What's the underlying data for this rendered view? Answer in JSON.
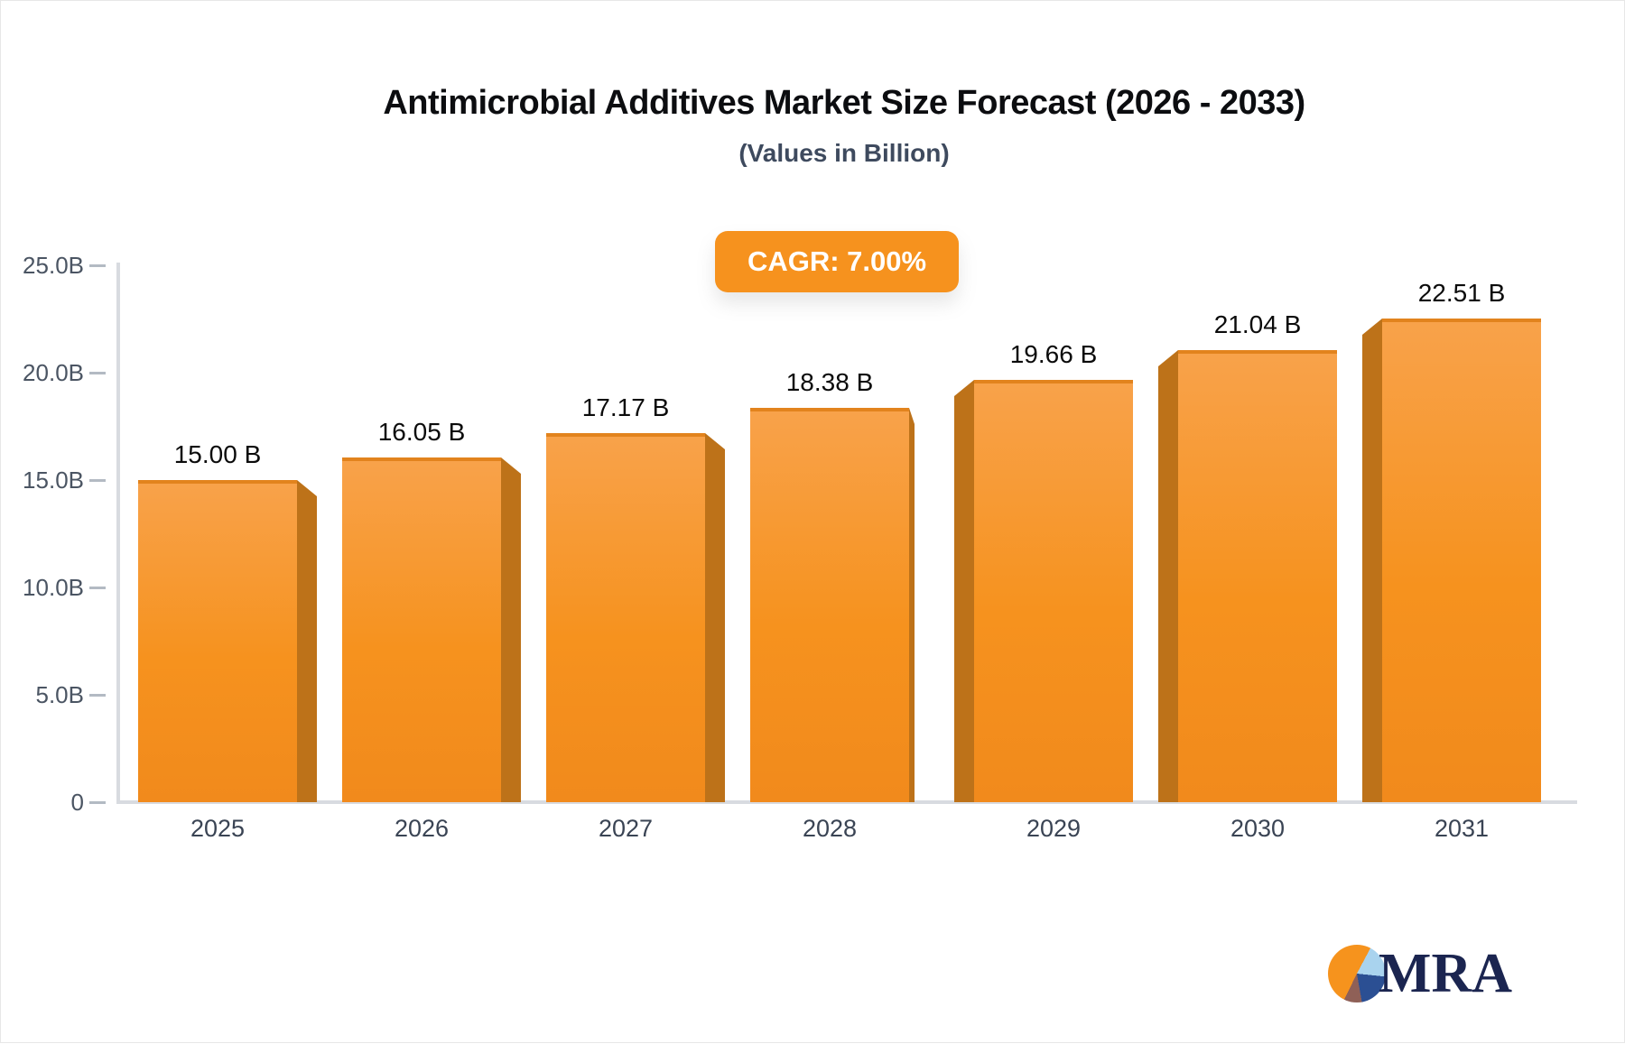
{
  "header": {
    "title": "Antimicrobial Additives Market Size Forecast (2026 - 2033)",
    "subtitle": "(Values in Billion)"
  },
  "cagr_badge": {
    "label": "CAGR: 7.00%",
    "background": "#f6921e",
    "text_color": "#ffffff"
  },
  "chart_data": {
    "type": "bar",
    "title": "Antimicrobial Additives Market Size Forecast (2026 - 2033)",
    "subtitle": "(Values in Billion)",
    "annotation": "CAGR: 7.00%",
    "unit": "Billion",
    "categories": [
      "2025",
      "2026",
      "2027",
      "2028",
      "2029",
      "2030",
      "2031"
    ],
    "values": [
      15.0,
      16.05,
      17.17,
      18.38,
      19.66,
      21.04,
      22.51
    ],
    "value_labels": [
      "15.00 B",
      "16.05 B",
      "17.17 B",
      "18.38 B",
      "19.66 B",
      "21.04 B",
      "22.51 B"
    ],
    "xlabel": "",
    "ylabel": "",
    "ylim": [
      0,
      25
    ],
    "yticks": [
      0,
      5,
      10,
      15,
      20,
      25
    ],
    "ytick_labels": [
      "0",
      "5.0B",
      "10.0B",
      "15.0B",
      "20.0B",
      "25.0B"
    ],
    "grid": false,
    "legend_position": "none",
    "bar_face_color": "#f6921e",
    "bar_face_light_color": "#f8a24a",
    "bar_side_color": "#bd7219",
    "bar_top_edge_color": "#e2831d",
    "axis_color": "#d8dbe0",
    "tick_dash_color": "#b3bac3",
    "ytick_label_color": "#4b5563",
    "value_label_color": "#0b0b0b",
    "category_label_color": "#3a4454"
  },
  "logo": {
    "text": "MRA",
    "text_color": "#1b2550",
    "pie_colors": {
      "orange": "#f6931d",
      "light_blue": "#a9d3ee",
      "navy": "#2b4f93",
      "maroon": "#8f6057"
    }
  }
}
